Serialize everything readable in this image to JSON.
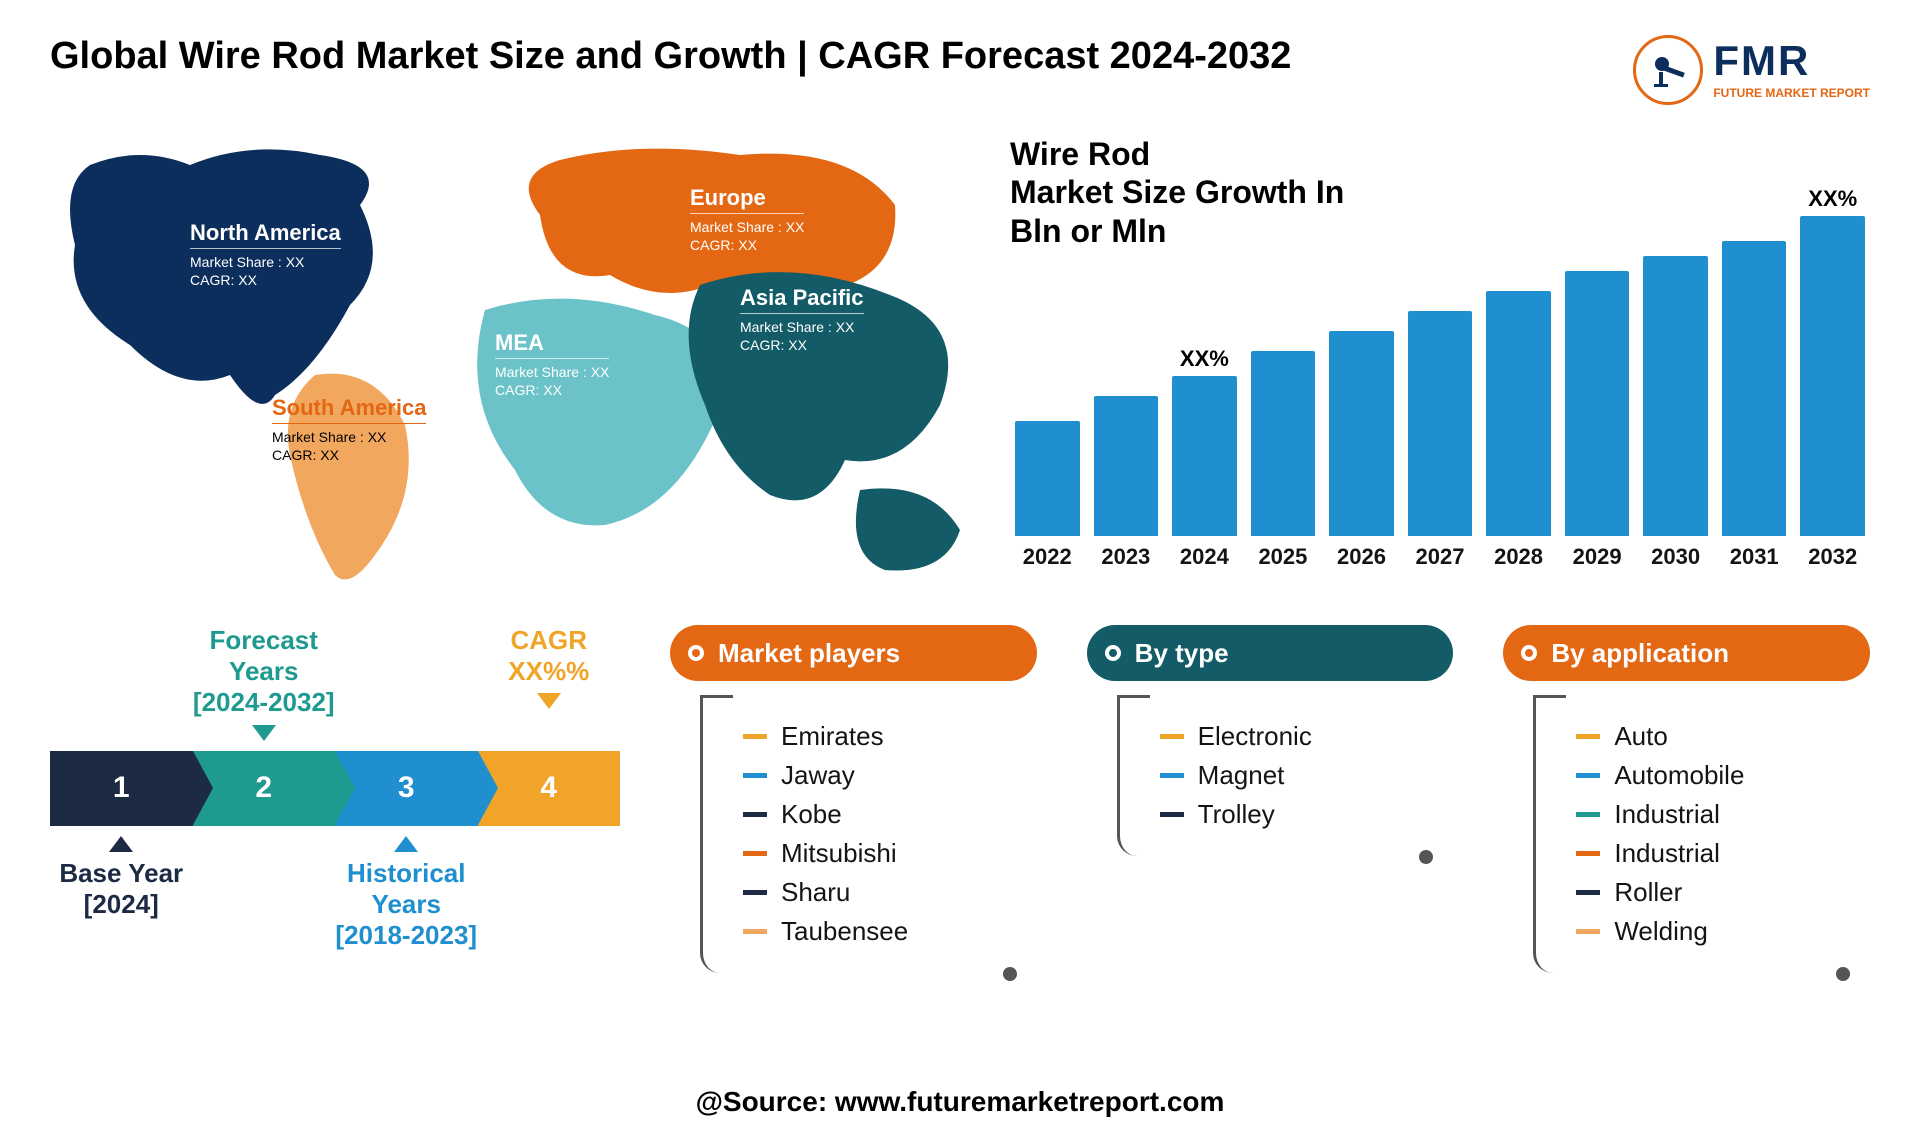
{
  "title": "Global Wire Rod  Market Size and Growth | CAGR Forecast 2024-2032",
  "logo": {
    "abbr": "FMR",
    "tagline": "FUTURE MARKET REPORT"
  },
  "map": {
    "regions": [
      {
        "key": "north_america",
        "name": "North America",
        "share": "Market Share : XX",
        "cagr": "CAGR: XX",
        "color": "#0c2e5c"
      },
      {
        "key": "south_america",
        "name": "South America",
        "share": "Market Share : XX",
        "cagr": "CAGR: XX",
        "color": "#f2a75f"
      },
      {
        "key": "europe",
        "name": "Europe",
        "share": "Market Share : XX",
        "cagr": "CAGR: XX",
        "color": "#e46713"
      },
      {
        "key": "mea",
        "name": "MEA",
        "share": "Market Share : XX",
        "cagr": "CAGR: XX",
        "color": "#6bc3c9"
      },
      {
        "key": "asia_pacific",
        "name": "Asia Pacific",
        "share": "Market Share : XX",
        "cagr": "CAGR: XX",
        "color": "#135b66"
      }
    ]
  },
  "chart": {
    "title_l1": "Wire Rod",
    "title_l2": "Market Size Growth In",
    "title_l3": "Bln or Mln",
    "bar_color": "#1f8fcf",
    "years": [
      "2022",
      "2023",
      "2024",
      "2025",
      "2026",
      "2027",
      "2028",
      "2029",
      "2030",
      "2031",
      "2032"
    ],
    "heights": [
      115,
      140,
      160,
      185,
      205,
      225,
      245,
      265,
      280,
      295,
      320
    ],
    "annotations": {
      "2024": "XX%",
      "2032": "XX%"
    }
  },
  "timeline": {
    "forecast": {
      "label": "Forecast Years",
      "range": "[2024-2032]",
      "color": "#1e9a8e"
    },
    "cagr": {
      "label": "CAGR",
      "value": "XX%%",
      "color": "#f0a428"
    },
    "base": {
      "label": "Base Year",
      "range": "[2024]",
      "color": "#1c2a44"
    },
    "hist": {
      "label": "Historical Years",
      "range": "[2018-2023]",
      "color": "#1f8fcf"
    },
    "segs": [
      {
        "n": "1",
        "bg": "#1c2a44"
      },
      {
        "n": "2",
        "bg": "#1e9a8e"
      },
      {
        "n": "3",
        "bg": "#1f8fcf"
      },
      {
        "n": "4",
        "bg": "#f0a428"
      }
    ]
  },
  "categories": [
    {
      "title": "Market players",
      "head_color": "#e46713",
      "items": [
        {
          "label": "Emirates",
          "tick": "#f0a428"
        },
        {
          "label": "Jaway",
          "tick": "#1f8fcf"
        },
        {
          "label": "Kobe",
          "tick": "#1c2a44"
        },
        {
          "label": "Mitsubishi",
          "tick": "#e46713"
        },
        {
          "label": "Sharu",
          "tick": "#1c2a44"
        },
        {
          "label": "Taubensee",
          "tick": "#f2a75f"
        }
      ]
    },
    {
      "title": "By type",
      "head_color": "#135b66",
      "items": [
        {
          "label": "Electronic",
          "tick": "#f0a428"
        },
        {
          "label": "Magnet",
          "tick": "#1f8fcf"
        },
        {
          "label": "Trolley",
          "tick": "#1c2a44"
        }
      ]
    },
    {
      "title": "By application",
      "head_color": "#e46713",
      "items": [
        {
          "label": "Auto",
          "tick": "#f0a428"
        },
        {
          "label": "Automobile",
          "tick": "#1f8fcf"
        },
        {
          "label": "Industrial",
          "tick": "#1e9a8e"
        },
        {
          "label": "Industrial",
          "tick": "#e46713"
        },
        {
          "label": "Roller",
          "tick": "#1c2a44"
        },
        {
          "label": "Welding",
          "tick": "#f2a75f"
        }
      ]
    }
  ],
  "source": "@Source: www.futuremarketreport.com"
}
